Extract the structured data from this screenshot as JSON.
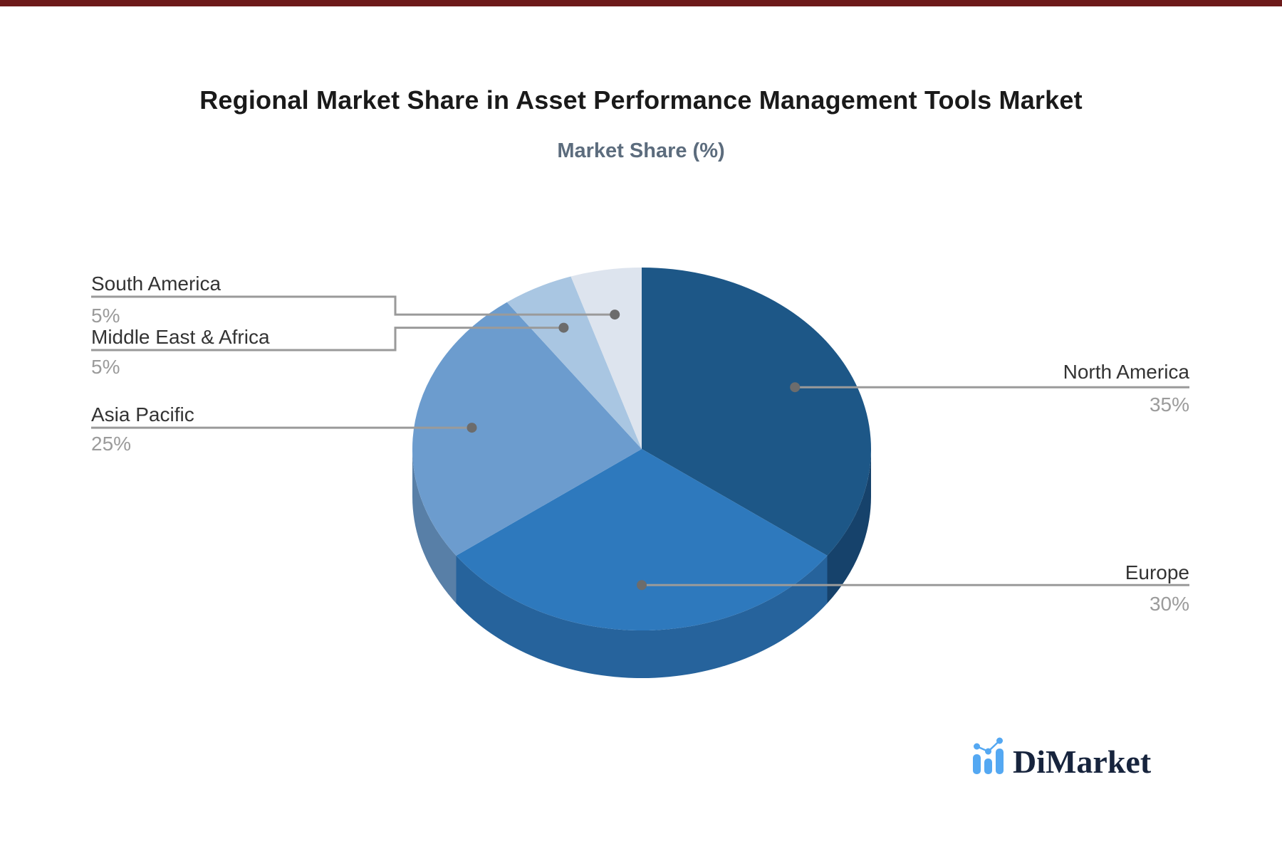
{
  "chart_data": {
    "type": "pie",
    "title": "Regional Market Share in Asset Performance Management Tools Market",
    "subtitle": "Market Share (%)",
    "unit": "%",
    "start_angle_deg": 0,
    "direction": "clockwise",
    "depth_3d": true,
    "legend_position": "callout-labels",
    "slices": [
      {
        "name": "North America",
        "value": 35,
        "label": "35%",
        "color": "#1d5787",
        "side_color": "#16426b"
      },
      {
        "name": "Europe",
        "value": 30,
        "label": "30%",
        "color": "#2e79bd",
        "side_color": "#26639c"
      },
      {
        "name": "Asia Pacific",
        "value": 25,
        "label": "25%",
        "color": "#6c9cce",
        "side_color": "#587fa7"
      },
      {
        "name": "Middle East & Africa",
        "value": 5,
        "label": "5%",
        "color": "#a9c6e2",
        "side_color": "#8aa9c6"
      },
      {
        "name": "South America",
        "value": 5,
        "label": "5%",
        "color": "#dde4ee",
        "side_color": "#b9c3d2"
      }
    ],
    "callout_line_color": "#9a9a9a",
    "callout_dot_color": "#6c6c6c",
    "label_color": "#333333",
    "value_color": "#9b9b9b"
  },
  "branding": {
    "logo_text": "DiMarket",
    "logo_color": "#17243d",
    "logo_icon_color": "#54a8f2"
  },
  "page": {
    "top_bar_color": "#6d1a1a"
  }
}
